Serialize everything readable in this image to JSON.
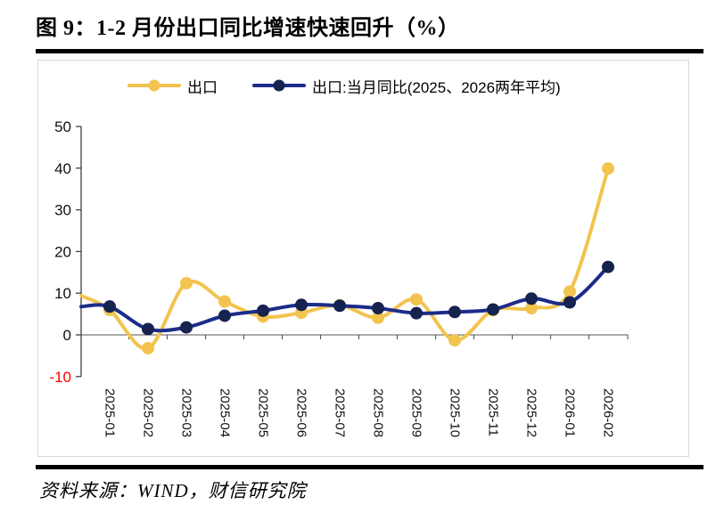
{
  "page": {
    "title": "图 9：1-2 月份出口同比增速快速回升（%）",
    "source": "资料来源：WIND，财信研究院"
  },
  "chart_data": {
    "type": "line",
    "title": "图 9：1-2 月份出口同比增速快速回升（%）",
    "categories": [
      "2025-01",
      "2025-02",
      "2025-03",
      "2025-04",
      "2025-05",
      "2025-06",
      "2025-07",
      "2025-08",
      "2025-09",
      "2025-10",
      "2025-11",
      "2025-12",
      "2026-01",
      "2026-02"
    ],
    "series": [
      {
        "name": "出口",
        "color": "#F2C44E",
        "marker_color": "#F2C44E",
        "values": [
          6.0,
          -3.2,
          12.4,
          8.0,
          4.4,
          5.3,
          7.1,
          4.1,
          8.5,
          -1.3,
          5.9,
          6.4,
          10.4,
          39.9
        ],
        "left_edge_value": 9.4
      },
      {
        "name": "出口:当月同比(2025、2026两年平均)",
        "color": "#1B2C8A",
        "marker_color": "#16224F",
        "values": [
          6.8,
          1.4,
          1.8,
          4.6,
          5.8,
          7.2,
          7.0,
          6.4,
          5.2,
          5.5,
          6.1,
          8.7,
          7.8,
          16.3
        ],
        "left_edge_value": 6.8
      }
    ],
    "ylim": [
      -10,
      50
    ],
    "yticks": [
      50,
      40,
      30,
      20,
      10,
      0,
      -10
    ],
    "negative_tick_color": "#FF0000",
    "axis_color": "#404040",
    "tick_label_color": "#111111",
    "legend_position": "top",
    "grid": false,
    "smoothed_lines": true,
    "x_label_rotation_deg": 90
  }
}
